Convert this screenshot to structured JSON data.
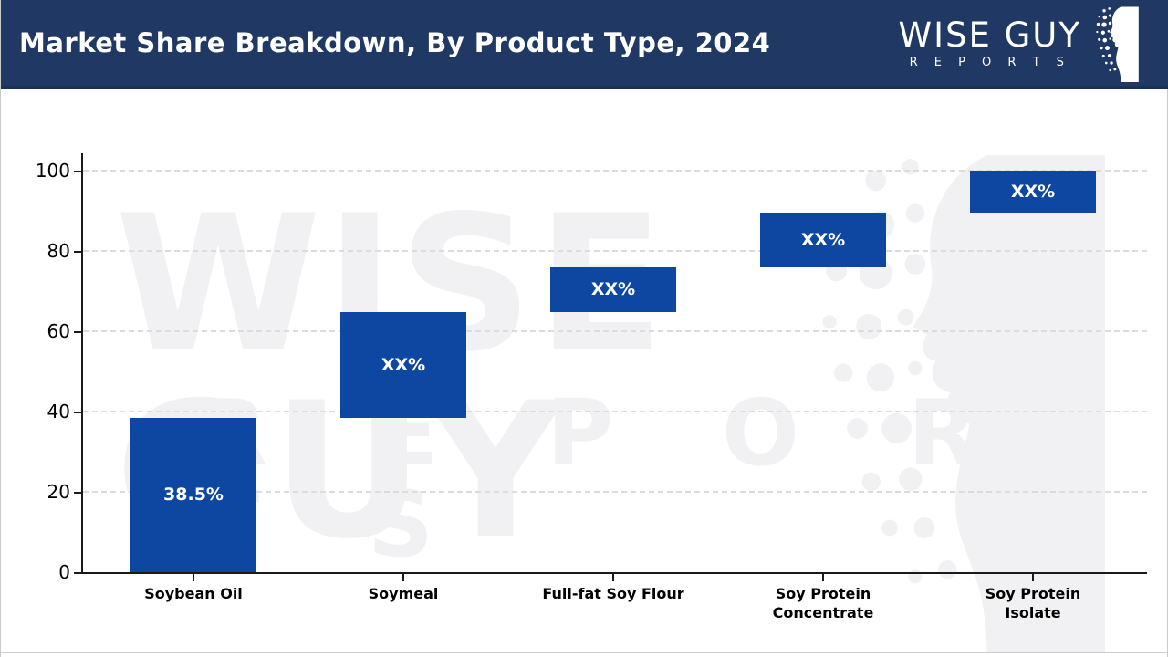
{
  "header": {
    "title": "Market Share Breakdown, By Product Type, 2024",
    "logo": {
      "line1": "WISE GUY",
      "line2": "R E P O R T S"
    }
  },
  "watermark": {
    "line1": "WISE GUY",
    "line2": "R E P O R T S"
  },
  "colors": {
    "header_bg": "#1f3864",
    "bar": "#0d47a1",
    "bar_label": "#ffffff",
    "grid": "#dcdcdc",
    "axis": "#1a1a1a",
    "watermark": "#f1f1f3"
  },
  "chart_data": {
    "type": "bar",
    "subtype": "waterfall",
    "title": "Market Share Breakdown, By Product Type, 2024",
    "categories": [
      "Soybean Oil",
      "Soymeal",
      "Full-fat Soy Flour",
      "Soy Protein\nConcentrate",
      "Soy Protein\nIsolate"
    ],
    "segments": [
      {
        "category": "Soybean Oil",
        "start": 0,
        "end": 38.5,
        "label": "38.5%"
      },
      {
        "category": "Soymeal",
        "start": 38.5,
        "end": 64.8,
        "label": "XX%"
      },
      {
        "category": "Full-fat Soy Flour",
        "start": 64.8,
        "end": 75.9,
        "label": "XX%"
      },
      {
        "category": "Soy Protein Concentrate",
        "start": 75.9,
        "end": 89.5,
        "label": "XX%"
      },
      {
        "category": "Soy Protein Isolate",
        "start": 89.5,
        "end": 100,
        "label": "XX%"
      }
    ],
    "xlabel": "",
    "ylabel": "",
    "yticks": [
      0,
      20,
      40,
      60,
      80,
      100
    ],
    "ylim": [
      0,
      105
    ],
    "grid": "horizontal-dashed",
    "legend": "none"
  }
}
